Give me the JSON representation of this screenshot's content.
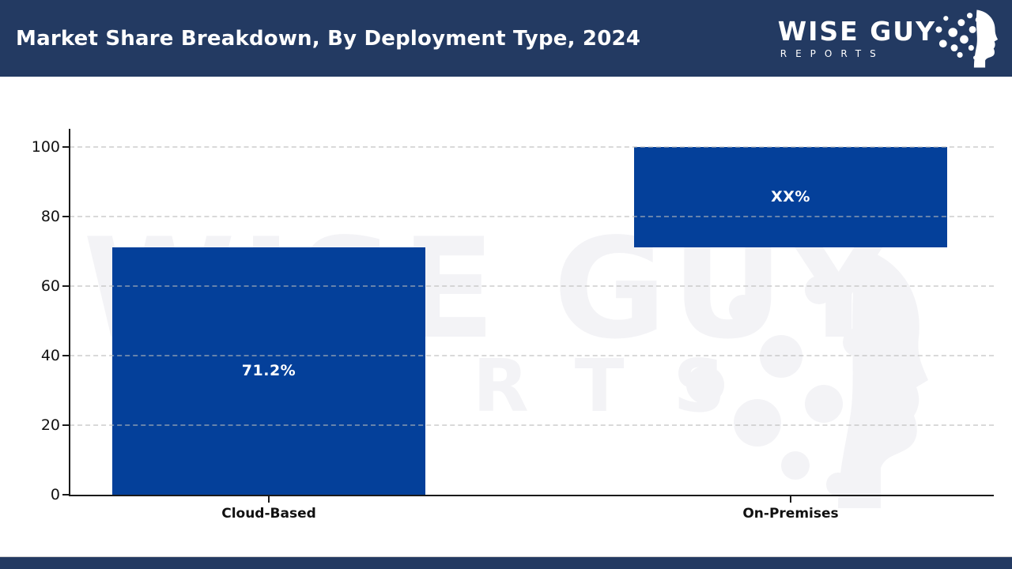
{
  "header": {
    "title": "Market Share Breakdown, By Deployment Type, 2024",
    "bg_color": "#233A62",
    "logo": {
      "line1": "WISE GUY",
      "line2": "REPORTS"
    }
  },
  "watermark": {
    "line1": "WISE GUY",
    "line2": "RTS"
  },
  "footer": {
    "bg_color": "#233A62"
  },
  "chart_data": {
    "type": "bar",
    "title": "Market Share Breakdown, By Deployment Type, 2024",
    "categories": [
      "Cloud-Based",
      "On-Premises"
    ],
    "bars": [
      {
        "category": "Cloud-Based",
        "label": "71.2%",
        "value": 71.2,
        "segment_start": 0,
        "segment_end": 71.2
      },
      {
        "category": "On-Premises",
        "label": "XX%",
        "value": null,
        "segment_start": 71.2,
        "segment_end": 100
      }
    ],
    "xlabel": "",
    "ylabel": "",
    "ylim": [
      0,
      100
    ],
    "yticks": [
      0,
      20,
      40,
      60,
      80,
      100
    ],
    "grid": {
      "horizontal": true,
      "style": "dashed"
    },
    "legend": null,
    "bar_color": "#04409A",
    "bar_label_color": "#FFFFFF",
    "layout_hint": "second bar is stacked/floating from 71.2 to 100 (masked XX%)"
  }
}
